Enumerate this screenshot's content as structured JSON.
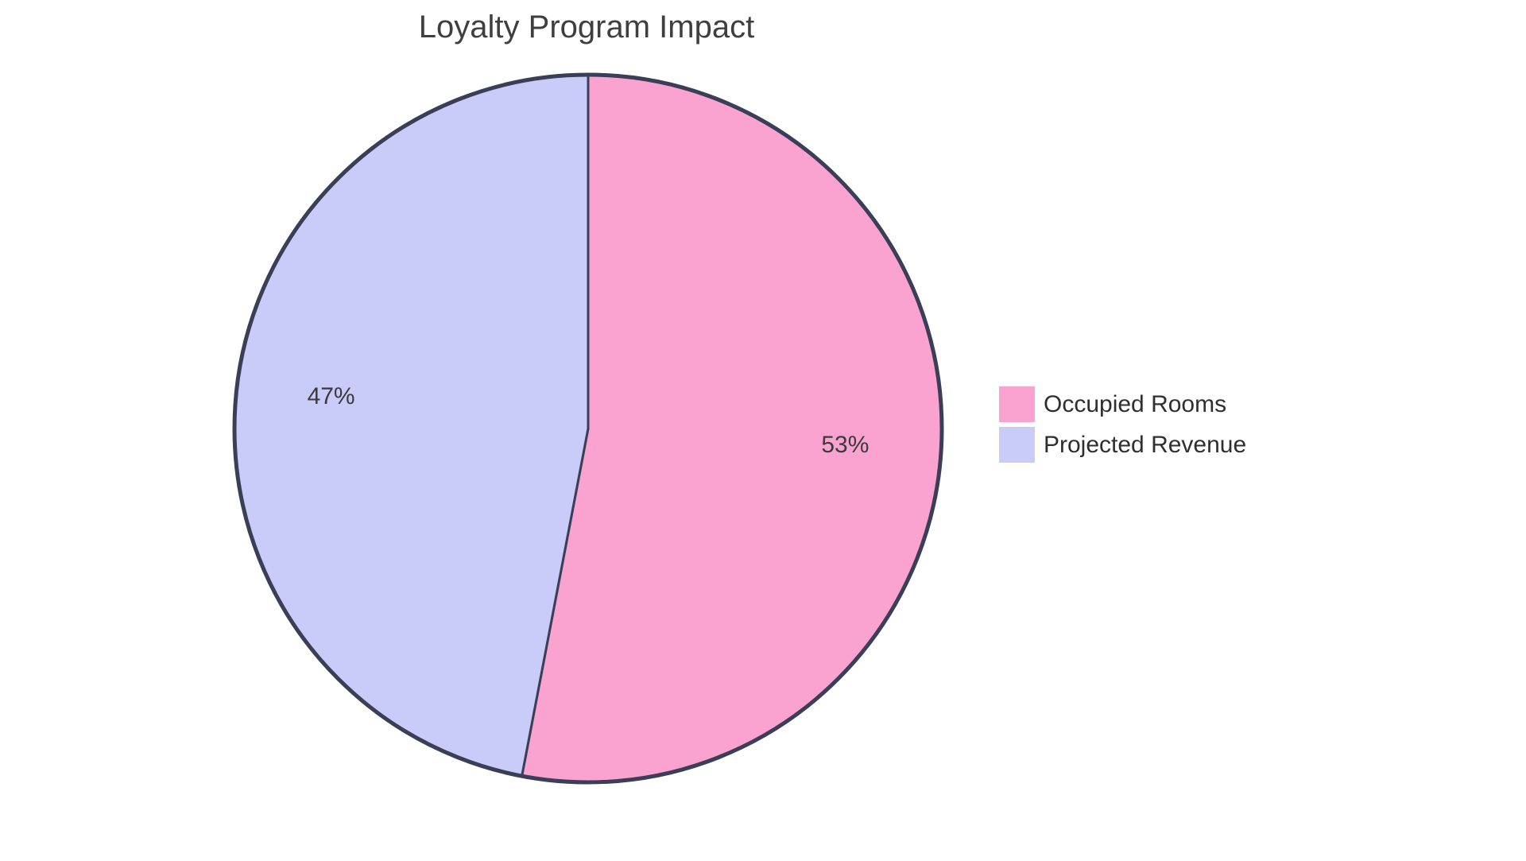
{
  "chart_data": {
    "type": "pie",
    "title": "Loyalty Program Impact",
    "labels": [
      "Occupied Rooms",
      "Projected Revenue"
    ],
    "values": [
      53,
      47
    ],
    "value_labels": [
      "53%",
      "47%"
    ],
    "colors": [
      "#FAA3D0",
      "#C9CBF8"
    ],
    "stroke_color": "#3A3E56",
    "background_color": "#FFFFFF",
    "legend_position": "right",
    "start_angle": "top",
    "direction": "clockwise",
    "label_radius_fraction": 0.73
  }
}
